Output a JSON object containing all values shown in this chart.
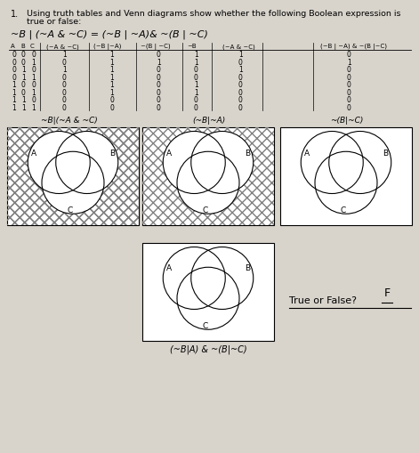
{
  "title_number": "1.",
  "title_text": "Using truth tables and Venn diagrams show whether the following Boolean expression is\ntrue or false:",
  "expression": "~B | (~A & ~C) = (~B | ~A)& ~(B | ~C)",
  "col_headers": [
    "A",
    "B",
    "C",
    "(~A & ~C)",
    "(~B |~A)",
    "~(B | ~C)",
    "~B",
    "(~A & ~C)",
    "(~B | ~A) & ~(B |~C)"
  ],
  "table_data": [
    [
      0,
      0,
      0,
      1,
      1,
      0,
      1,
      1,
      0
    ],
    [
      0,
      0,
      1,
      0,
      1,
      1,
      1,
      0,
      1
    ],
    [
      0,
      1,
      0,
      1,
      1,
      0,
      0,
      1,
      0
    ],
    [
      0,
      1,
      1,
      0,
      1,
      0,
      0,
      0,
      0
    ],
    [
      1,
      0,
      0,
      0,
      1,
      0,
      1,
      0,
      0
    ],
    [
      1,
      0,
      1,
      0,
      1,
      0,
      1,
      0,
      0
    ],
    [
      1,
      1,
      0,
      0,
      0,
      0,
      0,
      0,
      0
    ],
    [
      1,
      1,
      1,
      0,
      0,
      0,
      0,
      0,
      0
    ]
  ],
  "venn1_label": "~B|(~A & ~C)",
  "venn2_label": "(~B|~A)",
  "venn3_label": "~(B|~C)",
  "venn4_label": "(~B|A) & ~(B|~C)",
  "true_or_false_label": "True or False?",
  "answer": "F",
  "bg_color": "#d8d4cc"
}
